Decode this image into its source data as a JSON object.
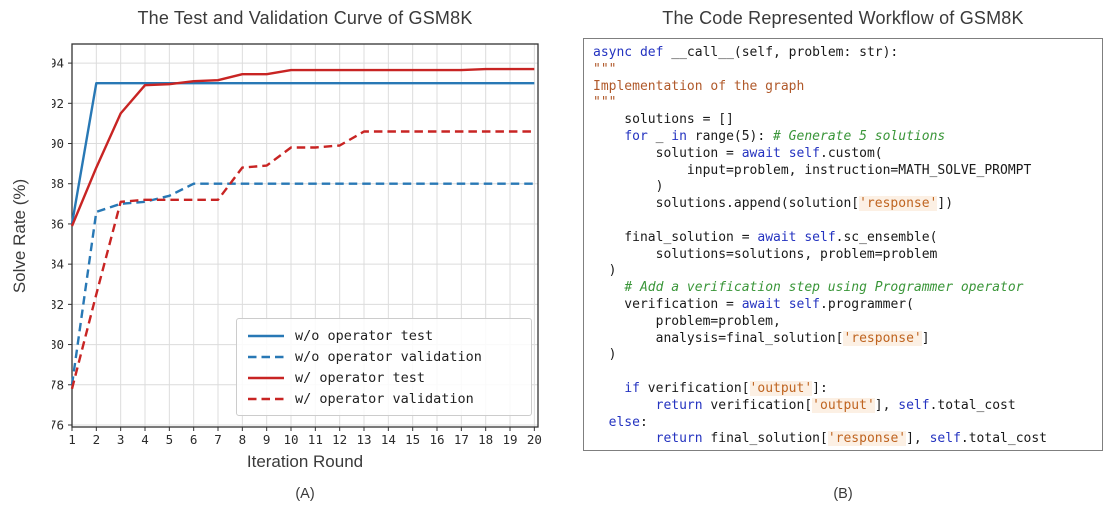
{
  "panel_a": {
    "title": "The Test and Validation Curve of GSM8K",
    "ylabel": "Solve Rate (%)",
    "xlabel": "Iteration Round",
    "caption": "(A)"
  },
  "panel_b": {
    "title": "The Code Represented Workflow of GSM8K",
    "caption": "(B)"
  },
  "chart_data": {
    "type": "line",
    "title": "The Test and Validation Curve of GSM8K",
    "xlabel": "Iteration Round",
    "ylabel": "Solve Rate (%)",
    "x": [
      1,
      2,
      3,
      4,
      5,
      6,
      7,
      8,
      9,
      10,
      11,
      12,
      13,
      14,
      15,
      16,
      17,
      18,
      19,
      20
    ],
    "xlim": [
      1,
      20.15
    ],
    "ylim": [
      75.9,
      94.95
    ],
    "yticks": [
      76,
      78,
      80,
      82,
      84,
      86,
      88,
      90,
      92,
      94
    ],
    "grid": true,
    "grid_color": "#dcdcdc",
    "legend_position": "lower right",
    "series": [
      {
        "name": "w/o operator test",
        "color": "#2878b5",
        "dash": "solid",
        "values": [
          86.0,
          93.0,
          93.0,
          93.0,
          93.0,
          93.0,
          93.0,
          93.0,
          93.0,
          93.0,
          93.0,
          93.0,
          93.0,
          93.0,
          93.0,
          93.0,
          93.0,
          93.0,
          93.0,
          93.0
        ]
      },
      {
        "name": "w/o operator validation",
        "color": "#2878b5",
        "dash": "dashed",
        "values": [
          78.0,
          86.6,
          87.0,
          87.1,
          87.4,
          88.0,
          88.0,
          88.0,
          88.0,
          88.0,
          88.0,
          88.0,
          88.0,
          88.0,
          88.0,
          88.0,
          88.0,
          88.0,
          88.0,
          88.0
        ]
      },
      {
        "name": "w/ operator test",
        "color": "#c82423",
        "dash": "solid",
        "values": [
          85.9,
          88.8,
          91.5,
          92.9,
          92.95,
          93.1,
          93.15,
          93.45,
          93.45,
          93.65,
          93.65,
          93.65,
          93.65,
          93.65,
          93.65,
          93.65,
          93.65,
          93.7,
          93.7,
          93.7
        ]
      },
      {
        "name": "w/ operator validation",
        "color": "#c82423",
        "dash": "dashed",
        "values": [
          77.8,
          82.5,
          87.1,
          87.2,
          87.2,
          87.2,
          87.2,
          88.8,
          88.9,
          89.8,
          89.8,
          89.9,
          90.6,
          90.6,
          90.6,
          90.6,
          90.6,
          90.6,
          90.6,
          90.6
        ]
      }
    ]
  },
  "code_panel": {
    "border_color": "#7f7f7f",
    "token_colors": {
      "keyword": "#2433c0",
      "string": "#bf6420",
      "string_bg": "#fcf0e4",
      "docstring": "#b0592a",
      "comment": "#3a9639",
      "plain": "#1a1a1a"
    },
    "lines": [
      [
        [
          "k",
          "async"
        ],
        [
          "p",
          " "
        ],
        [
          "k",
          "def"
        ],
        [
          "p",
          " __call__(self, problem: str):"
        ]
      ],
      [
        [
          "d",
          "\"\"\""
        ]
      ],
      [
        [
          "d",
          "Implementation of the graph"
        ]
      ],
      [
        [
          "d",
          "\"\"\""
        ]
      ],
      [
        [
          "p",
          "    solutions = []"
        ]
      ],
      [
        [
          "p",
          "    "
        ],
        [
          "k",
          "for"
        ],
        [
          "p",
          " _ "
        ],
        [
          "k",
          "in"
        ],
        [
          "p",
          " range(5): "
        ],
        [
          "c",
          "# Generate 5 solutions"
        ]
      ],
      [
        [
          "p",
          "        solution = "
        ],
        [
          "k",
          "await"
        ],
        [
          "p",
          " "
        ],
        [
          "k",
          "self"
        ],
        [
          "p",
          ".custom("
        ]
      ],
      [
        [
          "p",
          "            input=problem, instruction=MATH_SOLVE_PROMPT"
        ]
      ],
      [
        [
          "p",
          "        )"
        ]
      ],
      [
        [
          "p",
          "        solutions.append(solution["
        ],
        [
          "s",
          "'response'"
        ],
        [
          "p",
          "])"
        ]
      ],
      [],
      [
        [
          "p",
          "    final_solution = "
        ],
        [
          "k",
          "await"
        ],
        [
          "p",
          " "
        ],
        [
          "k",
          "self"
        ],
        [
          "p",
          ".sc_ensemble("
        ]
      ],
      [
        [
          "p",
          "        solutions=solutions, problem=problem"
        ]
      ],
      [
        [
          "p",
          "  )"
        ]
      ],
      [
        [
          "p",
          "    "
        ],
        [
          "c",
          "# Add a verification step using Programmer operator"
        ]
      ],
      [
        [
          "p",
          "    verification = "
        ],
        [
          "k",
          "await"
        ],
        [
          "p",
          " "
        ],
        [
          "k",
          "self"
        ],
        [
          "p",
          ".programmer("
        ]
      ],
      [
        [
          "p",
          "        problem=problem,"
        ]
      ],
      [
        [
          "p",
          "        analysis=final_solution["
        ],
        [
          "s",
          "'response'"
        ],
        [
          "p",
          "]"
        ]
      ],
      [
        [
          "p",
          "  )"
        ]
      ],
      [],
      [
        [
          "p",
          "    "
        ],
        [
          "k",
          "if"
        ],
        [
          "p",
          " verification["
        ],
        [
          "s",
          "'output'"
        ],
        [
          "p",
          "]:"
        ]
      ],
      [
        [
          "p",
          "        "
        ],
        [
          "k",
          "return"
        ],
        [
          "p",
          " verification["
        ],
        [
          "s",
          "'output'"
        ],
        [
          "p",
          "], "
        ],
        [
          "k",
          "self"
        ],
        [
          "p",
          ".total_cost"
        ]
      ],
      [
        [
          "p",
          "  "
        ],
        [
          "k",
          "else"
        ],
        [
          "p",
          ":"
        ]
      ],
      [
        [
          "p",
          "        "
        ],
        [
          "k",
          "return"
        ],
        [
          "p",
          " final_solution["
        ],
        [
          "s",
          "'response'"
        ],
        [
          "p",
          "], "
        ],
        [
          "k",
          "self"
        ],
        [
          "p",
          ".total_cost"
        ]
      ]
    ]
  }
}
